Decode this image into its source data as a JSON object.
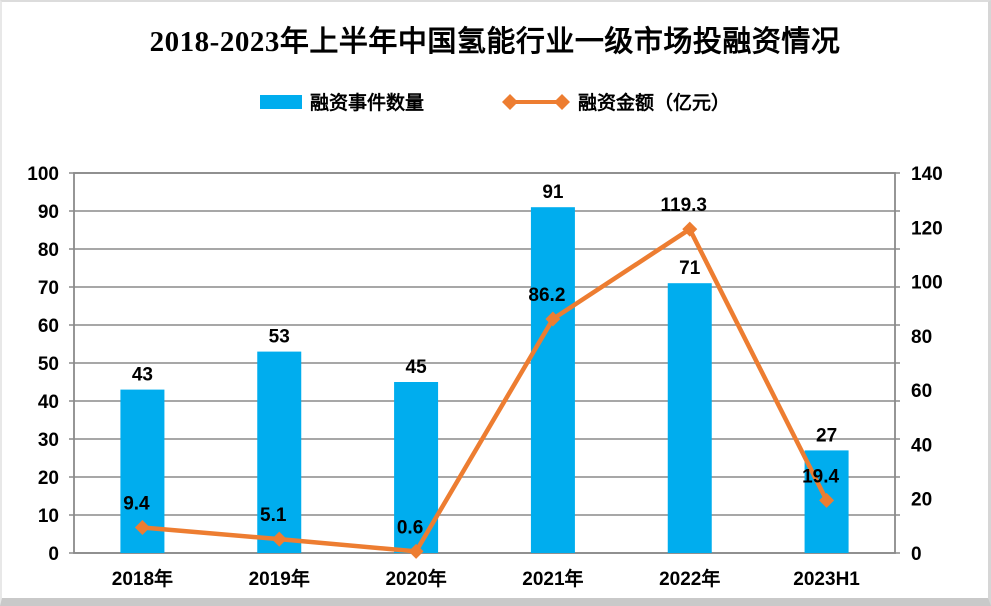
{
  "title": "2018-2023年上半年中国氢能行业一级市场投融资情况",
  "legend": [
    {
      "label": "融资事件数量",
      "type": "bar",
      "color": "#00ADEE"
    },
    {
      "label": "融资金额（亿元）",
      "type": "line",
      "color": "#ED7D31"
    }
  ],
  "colors": {
    "bar": "#00ADEE",
    "line": "#ED7D31",
    "grid": "#8a8a8a",
    "label": "#000000"
  },
  "chart_data": {
    "type": "combo-bar-line",
    "title": "2018-2023年上半年中国氢能行业一级市场投融资情况",
    "categories": [
      "2018年",
      "2019年",
      "2020年",
      "2021年",
      "2022年",
      "2023H1"
    ],
    "series": [
      {
        "name": "融资事件数量",
        "type": "bar",
        "axis": "left",
        "color": "#00ADEE",
        "values": [
          43,
          53,
          45,
          91,
          71,
          27
        ]
      },
      {
        "name": "融资金额（亿元）",
        "type": "line",
        "axis": "right",
        "color": "#ED7D31",
        "values": [
          9.4,
          5.1,
          0.6,
          86.2,
          119.3,
          19.4
        ]
      }
    ],
    "left_axis": {
      "min": 0,
      "max": 100,
      "step": 10
    },
    "right_axis": {
      "min": 0,
      "max": 140,
      "step": 20
    },
    "grid": true,
    "legend_position": "top",
    "data_labels": true
  }
}
